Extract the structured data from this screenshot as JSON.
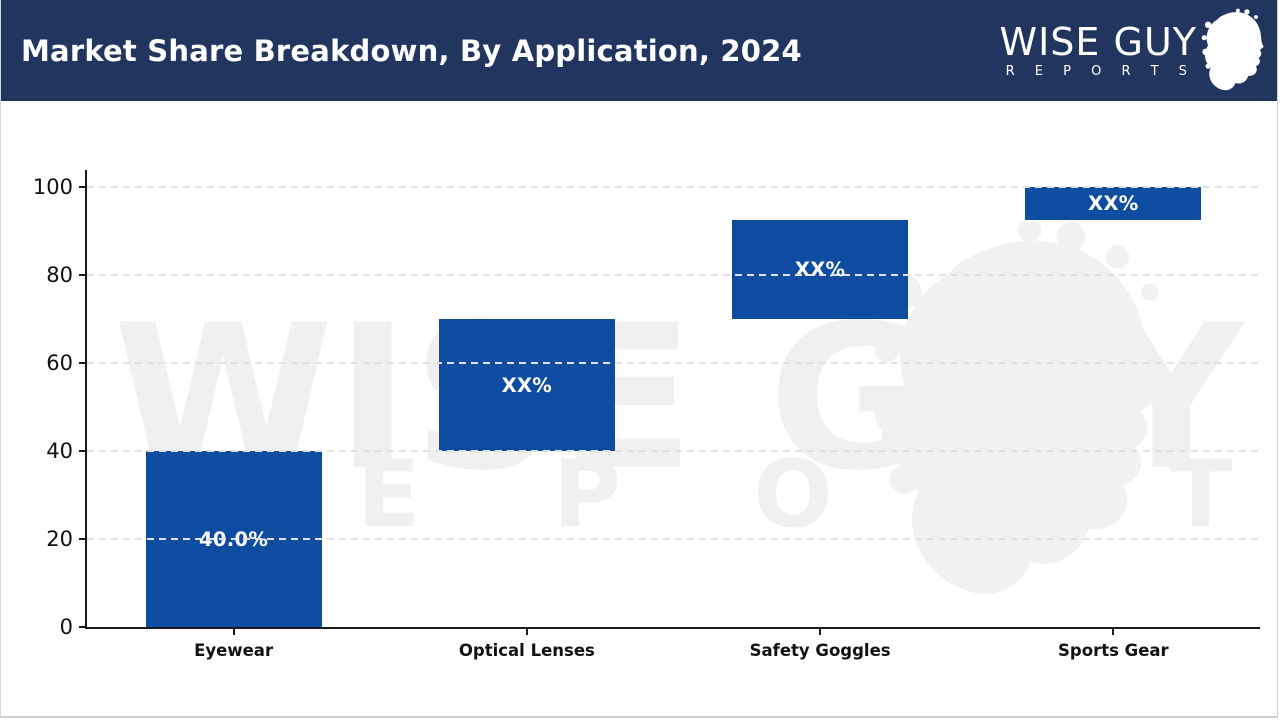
{
  "header": {
    "title": "Market Share Breakdown, By Application, 2024",
    "logo": {
      "wordmark": "WISE GUY",
      "subtext": "R E P O R T S",
      "icon": "face-profile-dots-icon"
    }
  },
  "watermark": {
    "line1": "WISE GUY",
    "line2": "R E P O R T S",
    "icon": "face-profile-dots-watermark"
  },
  "chart_data": {
    "type": "bar",
    "subtype": "floating-segment-waterfall",
    "title": "Market Share Breakdown, By Application, 2024",
    "categories": [
      "Eyewear",
      "Optical Lenses",
      "Safety Goggles",
      "Sports Gear"
    ],
    "segments": [
      {
        "category": "Eyewear",
        "start": 0,
        "end": 40,
        "label": "40.0%"
      },
      {
        "category": "Optical Lenses",
        "start": 40,
        "end": 70,
        "label": "XX%"
      },
      {
        "category": "Safety Goggles",
        "start": 70,
        "end": 92.5,
        "label": "XX%"
      },
      {
        "category": "Sports Gear",
        "start": 92.5,
        "end": 100,
        "label": "XX%"
      }
    ],
    "xlabel": "",
    "ylabel": "",
    "y_ticks": [
      0,
      20,
      40,
      60,
      80,
      100
    ],
    "ylim": [
      0,
      104
    ],
    "grid": "horizontal dashed gridlines drawn above bars",
    "legend": "none"
  },
  "colors": {
    "header_bg": "#22355f",
    "bar_fill": "#0d4ca0",
    "bar_label_text": "#ffffff",
    "axis": "#1a1a1a",
    "tick_text": "#111111",
    "gridline": "#e2e2e2",
    "watermark": "#f0f0f1",
    "background": "#ffffff",
    "frame_border": "#d6d6d6"
  }
}
